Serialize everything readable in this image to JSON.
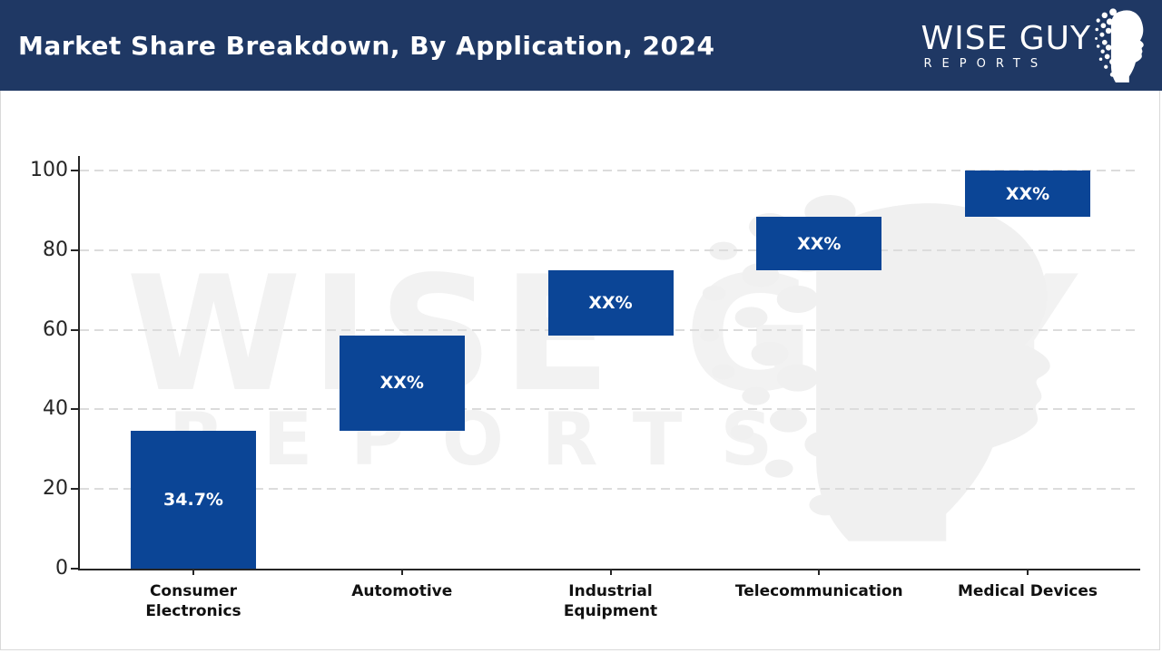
{
  "header": {
    "title": "Market Share Breakdown, By Application, 2024",
    "bg_color": "#1f3864"
  },
  "brand": {
    "line1": "WISE GUY",
    "line2": "REPORTS"
  },
  "chart_data": {
    "type": "bar",
    "subtype": "waterfall",
    "title": "Market Share Breakdown, By Application, 2024",
    "categories": [
      "Consumer\nElectronics",
      "Automotive",
      "Industrial\nEquipment",
      "Telecommunication",
      "Medical Devices"
    ],
    "segments": [
      {
        "category": "Consumer Electronics",
        "start": 0,
        "end": 34.7,
        "value": 34.7,
        "label": "34.7%"
      },
      {
        "category": "Automotive",
        "start": 34.7,
        "end": 58.5,
        "value": 23.8,
        "label": "XX%"
      },
      {
        "category": "Industrial Equipment",
        "start": 58.5,
        "end": 75.0,
        "value": 16.5,
        "label": "XX%"
      },
      {
        "category": "Telecommunication",
        "start": 75.0,
        "end": 88.3,
        "value": 13.3,
        "label": "XX%"
      },
      {
        "category": "Medical Devices",
        "start": 88.3,
        "end": 100.0,
        "value": 11.7,
        "label": "XX%"
      }
    ],
    "y_ticks": [
      0,
      20,
      40,
      60,
      80,
      100
    ],
    "ylim": [
      0,
      105
    ],
    "xlabel": "",
    "ylabel": "",
    "grid": "horizontal-dashed",
    "legend": "none",
    "bar_color": "#0b4596",
    "bar_label_color": "#ffffff",
    "grid_color": "#dcdcdc",
    "axis_color": "#262626",
    "watermark_color": "#f2f2f2"
  }
}
